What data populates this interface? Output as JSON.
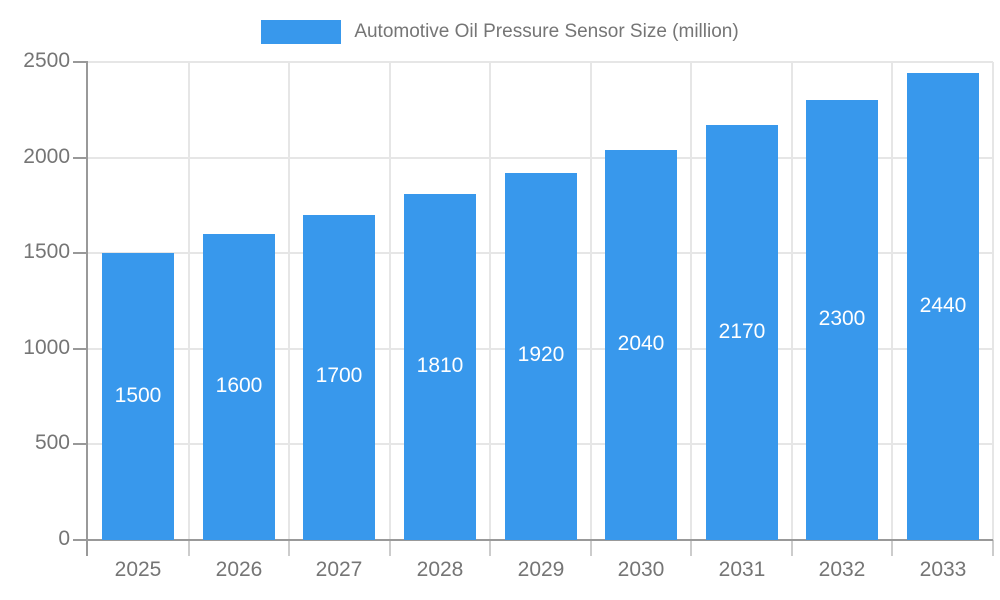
{
  "legend": {
    "label": "Automotive Oil Pressure Sensor Size (million)"
  },
  "chart_data": {
    "type": "bar",
    "title": "Automotive Oil Pressure Sensor Size (million)",
    "categories": [
      "2025",
      "2026",
      "2027",
      "2028",
      "2029",
      "2030",
      "2031",
      "2032",
      "2033"
    ],
    "values": [
      1500,
      1600,
      1700,
      1810,
      1920,
      2040,
      2170,
      2300,
      2440
    ],
    "series_name": "Automotive Oil Pressure Sensor Size (million)",
    "xlabel": "",
    "ylabel": "",
    "ylim": [
      0,
      2500
    ],
    "yticks": [
      0,
      500,
      1000,
      1500,
      2000,
      2500
    ],
    "grid": true,
    "legend_position": "top",
    "bar_labels_visible": true,
    "colors": {
      "bar": "#3898ec",
      "bar_label": "#ffffff",
      "axis": "#999999",
      "grid": "#e6e6e6",
      "tick": "#cccccc",
      "text": "#757575"
    }
  }
}
